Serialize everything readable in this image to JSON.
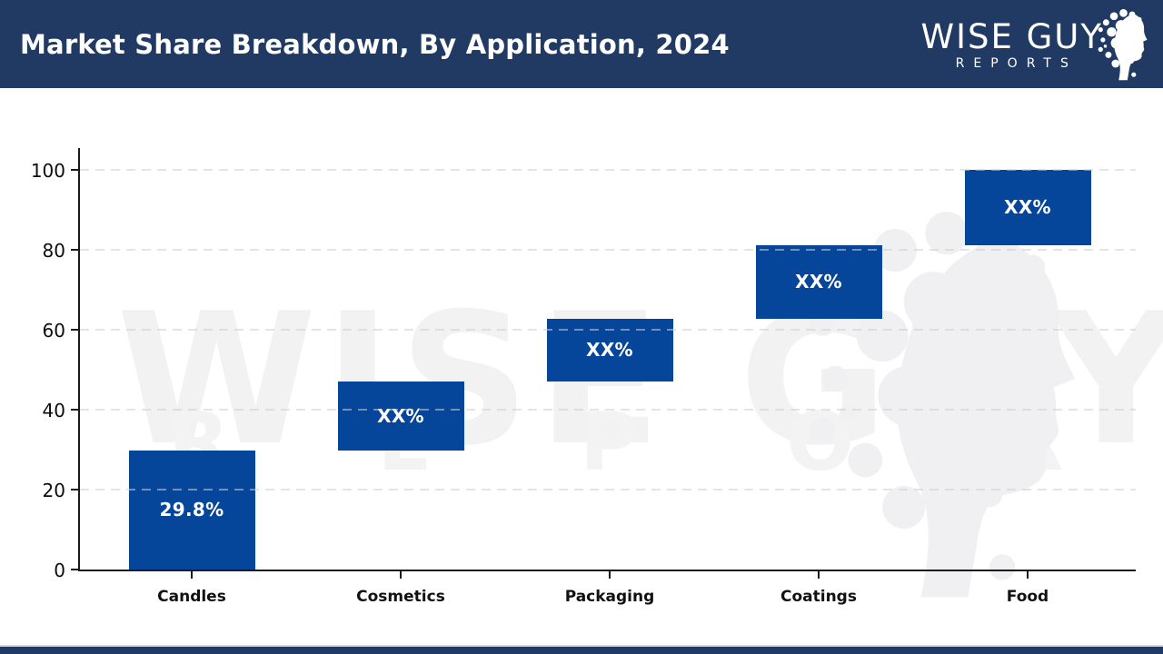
{
  "header": {
    "title": "Market Share Breakdown, By Application, 2024",
    "logo": {
      "line1": "WISE GUY",
      "line2": "REPORTS"
    }
  },
  "watermark": {
    "line1": "WISE GUY",
    "line2": "R E P O R T S"
  },
  "colors": {
    "header_bg": "#213A64",
    "bar_fill": "#05459A",
    "bar_label_text": "#ffffff",
    "gridline": "#dcdcdc",
    "axis": "#1a1a1a",
    "watermark": "#f2f2f3"
  },
  "chart_data": {
    "type": "bar",
    "subtype": "waterfall-floating-bars",
    "title": "Market Share Breakdown, By Application, 2024",
    "xlabel": "",
    "ylabel": "",
    "categories": [
      "Candles",
      "Cosmetics",
      "Packaging",
      "Coatings",
      "Food"
    ],
    "bars": [
      {
        "category": "Candles",
        "start": 0,
        "end": 29.8,
        "label": "29.8%"
      },
      {
        "category": "Cosmetics",
        "start": 29.8,
        "end": 47.0,
        "label": "XX%"
      },
      {
        "category": "Packaging",
        "start": 47.0,
        "end": 62.8,
        "label": "XX%"
      },
      {
        "category": "Coatings",
        "start": 62.8,
        "end": 81.2,
        "label": "XX%"
      },
      {
        "category": "Food",
        "start": 81.2,
        "end": 100.0,
        "label": "XX%"
      }
    ],
    "yticks": [
      0,
      20,
      40,
      60,
      80,
      100
    ],
    "ylim": [
      0,
      105.5
    ],
    "grid": "dashed horizontal gridlines, drawn over bars",
    "legend": "none"
  }
}
